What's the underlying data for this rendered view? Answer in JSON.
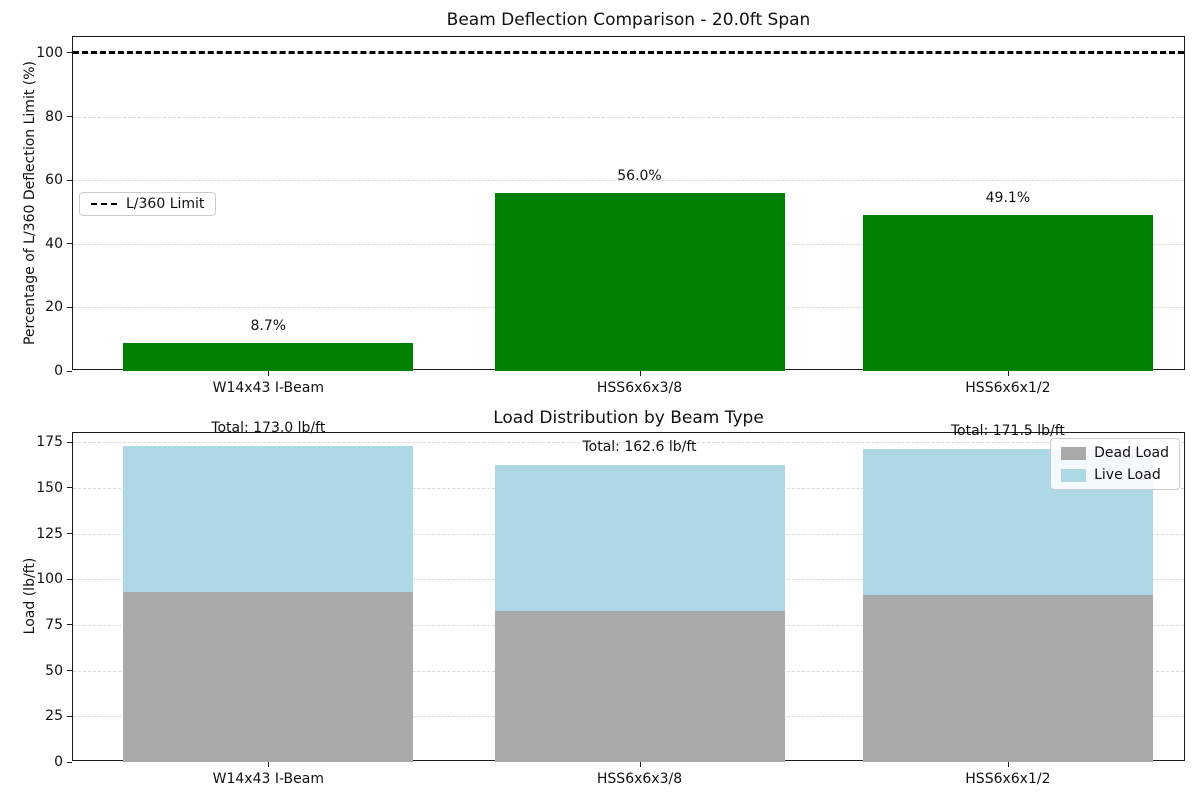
{
  "figure": {
    "background": "#ffffff"
  },
  "chart_data": [
    {
      "type": "bar",
      "title": "Beam Deflection Comparison - 20.0ft Span",
      "ylabel": "Percentage of L/360 Deflection Limit (%)",
      "xlabel": "",
      "categories": [
        "W14x43 I-Beam",
        "HSS6x6x3/8",
        "HSS6x6x1/2"
      ],
      "values": [
        8.7,
        56.0,
        49.1
      ],
      "bar_labels": [
        "8.7%",
        "56.0%",
        "49.1%"
      ],
      "bar_color": "#008000",
      "yticks": [
        0,
        20,
        40,
        60,
        80,
        100
      ],
      "ylim": [
        0,
        105
      ],
      "grid": "horizontal-dashed",
      "limit_line": {
        "value": 100,
        "style": "dashed",
        "color": "#000000"
      },
      "legend": {
        "position": "center-left",
        "entries": [
          {
            "label": "L/360 Limit",
            "sample": "black-dashed-line"
          }
        ]
      }
    },
    {
      "type": "stacked-bar",
      "title": "Load Distribution by Beam Type",
      "ylabel": "Load (lb/ft)",
      "xlabel": "",
      "categories": [
        "W14x43 I-Beam",
        "HSS6x6x3/8",
        "HSS6x6x1/2"
      ],
      "series": [
        {
          "name": "Dead Load",
          "color": "#a9a9a9",
          "values": [
            93.0,
            82.6,
            91.5
          ]
        },
        {
          "name": "Live Load",
          "color": "#add8e6",
          "values": [
            80.0,
            80.0,
            80.0
          ]
        }
      ],
      "totals": [
        173.0,
        162.6,
        171.5
      ],
      "total_labels": [
        "Total: 173.0 lb/ft",
        "Total: 162.6 lb/ft",
        "Total: 171.5 lb/ft"
      ],
      "yticks": [
        0,
        25,
        50,
        75,
        100,
        125,
        150,
        175
      ],
      "ylim": [
        0,
        180
      ],
      "grid": "horizontal-dashed",
      "legend": {
        "position": "top-right",
        "entries": [
          {
            "label": "Dead Load",
            "sample": "gray-patch"
          },
          {
            "label": "Live Load",
            "sample": "lightblue-patch"
          }
        ]
      }
    }
  ]
}
